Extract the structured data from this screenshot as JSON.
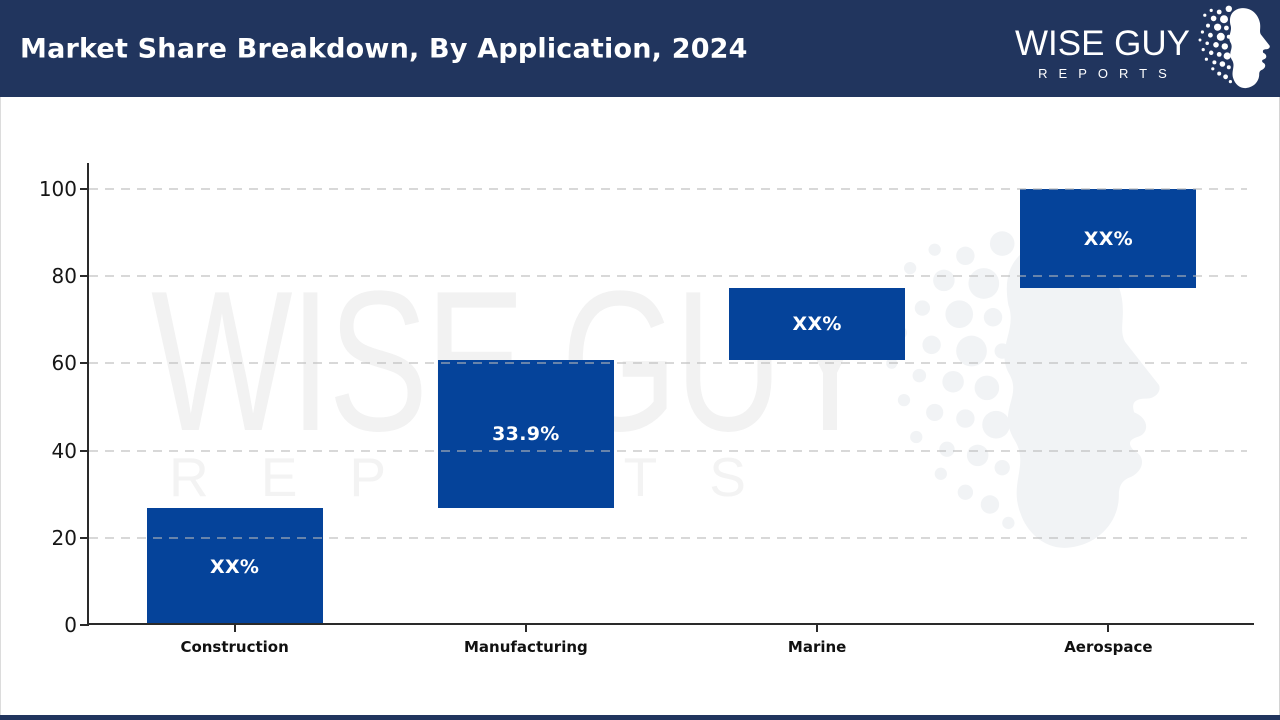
{
  "header": {
    "title": "Market Share Breakdown, By Application, 2024"
  },
  "logo": {
    "line1": "WISE GUY",
    "line2": "REPORTS",
    "icon": "profile-face-dots-icon"
  },
  "watermark": {
    "line1": "WISE GUY",
    "line2": "REPORTS",
    "icon": "profile-face-dots-icon"
  },
  "colors": {
    "navy_header": "#21355e",
    "bar_blue": "#05439a",
    "grid_gray": "#d7d7d7",
    "watermark_gray": "#f2f2f2",
    "axis_black": "#2a2a2a"
  },
  "chart_data": {
    "type": "bar",
    "subtype": "floating-waterfall",
    "title": "Market Share Breakdown, By Application, 2024",
    "categories": [
      "Construction",
      "Manufacturing",
      "Marine",
      "Aerospace"
    ],
    "bars": [
      {
        "category": "Construction",
        "start": 0,
        "end": 26.8,
        "label": "XX%"
      },
      {
        "category": "Manufacturing",
        "start": 26.8,
        "end": 60.7,
        "label": "33.9%",
        "value": 33.9
      },
      {
        "category": "Marine",
        "start": 60.7,
        "end": 77.3,
        "label": "XX%"
      },
      {
        "category": "Aerospace",
        "start": 77.3,
        "end": 100,
        "label": "XX%"
      }
    ],
    "xlabel": "",
    "ylabel": "",
    "ylim": [
      0,
      106.6
    ],
    "yticks": [
      0,
      20,
      40,
      60,
      80,
      100
    ],
    "grid": "dashed-horizontal",
    "legend": false,
    "bar_color": "#05439a",
    "bar_label_color": "#ffffff"
  }
}
